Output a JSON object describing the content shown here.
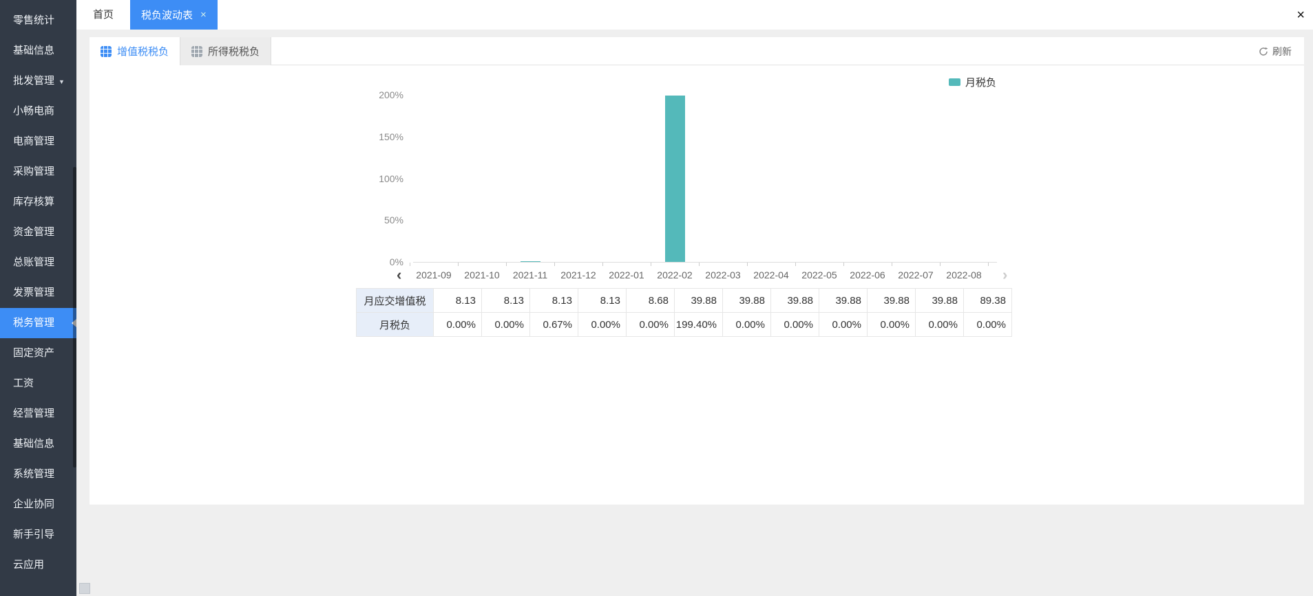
{
  "window": {
    "close_icon": "×"
  },
  "sidebar": {
    "items": [
      {
        "label": "零售统计",
        "active": false,
        "caret": false
      },
      {
        "label": "基础信息",
        "active": false,
        "caret": false
      },
      {
        "label": "批发管理",
        "active": false,
        "caret": true
      },
      {
        "label": "小畅电商",
        "active": false,
        "caret": false
      },
      {
        "label": "电商管理",
        "active": false,
        "caret": false
      },
      {
        "label": "采购管理",
        "active": false,
        "caret": false
      },
      {
        "label": "库存核算",
        "active": false,
        "caret": false
      },
      {
        "label": "资金管理",
        "active": false,
        "caret": false
      },
      {
        "label": "总账管理",
        "active": false,
        "caret": false
      },
      {
        "label": "发票管理",
        "active": false,
        "caret": false
      },
      {
        "label": "税务管理",
        "active": true,
        "caret": false
      },
      {
        "label": "固定资产",
        "active": false,
        "caret": false
      },
      {
        "label": "工资",
        "active": false,
        "caret": false
      },
      {
        "label": "经营管理",
        "active": false,
        "caret": false
      },
      {
        "label": "基础信息",
        "active": false,
        "caret": false
      },
      {
        "label": "系统管理",
        "active": false,
        "caret": false
      },
      {
        "label": "企业协同",
        "active": false,
        "caret": false
      },
      {
        "label": "新手引导",
        "active": false,
        "caret": false
      },
      {
        "label": "云应用",
        "active": false,
        "caret": false
      }
    ]
  },
  "topbar": {
    "home_tab": "首页",
    "active_tab": "税负波动表",
    "close_tab_icon": "×"
  },
  "panel": {
    "tabs": [
      {
        "label": "增值税税负",
        "active": true
      },
      {
        "label": "所得税税负",
        "active": false
      }
    ],
    "refresh_label": "刷新",
    "pager_prev": "‹",
    "pager_next": "›"
  },
  "chart_data": {
    "type": "bar",
    "title": "",
    "legend": [
      {
        "name": "月税负",
        "color": "#54b9ba"
      }
    ],
    "categories": [
      "2021-09",
      "2021-10",
      "2021-11",
      "2021-12",
      "2022-01",
      "2022-02",
      "2022-03",
      "2022-04",
      "2022-05",
      "2022-06",
      "2022-07",
      "2022-08"
    ],
    "series": [
      {
        "name": "月税负",
        "values": [
          0.0,
          0.0,
          0.67,
          0.0,
          0.0,
          199.4,
          0.0,
          0.0,
          0.0,
          0.0,
          0.0,
          0.0
        ]
      }
    ],
    "unit": "%",
    "ylim": [
      0,
      200
    ],
    "yticks": [
      "0%",
      "50%",
      "100%",
      "150%",
      "200%"
    ],
    "grid": false,
    "legend_position": "top-right"
  },
  "table": {
    "rows": [
      {
        "label": "月应交增值税",
        "values": [
          "8.13",
          "8.13",
          "8.13",
          "8.13",
          "8.68",
          "39.88",
          "39.88",
          "39.88",
          "39.88",
          "39.88",
          "39.88",
          "89.38"
        ]
      },
      {
        "label": "月税负",
        "values": [
          "0.00%",
          "0.00%",
          "0.67%",
          "0.00%",
          "0.00%",
          "199.40%",
          "0.00%",
          "0.00%",
          "0.00%",
          "0.00%",
          "0.00%",
          "0.00%"
        ]
      }
    ]
  },
  "colors": {
    "accent_blue": "#3d8df5",
    "bar_teal": "#54b9ba",
    "sidebar_bg": "#323a46",
    "workspace_bg": "#efefef"
  }
}
